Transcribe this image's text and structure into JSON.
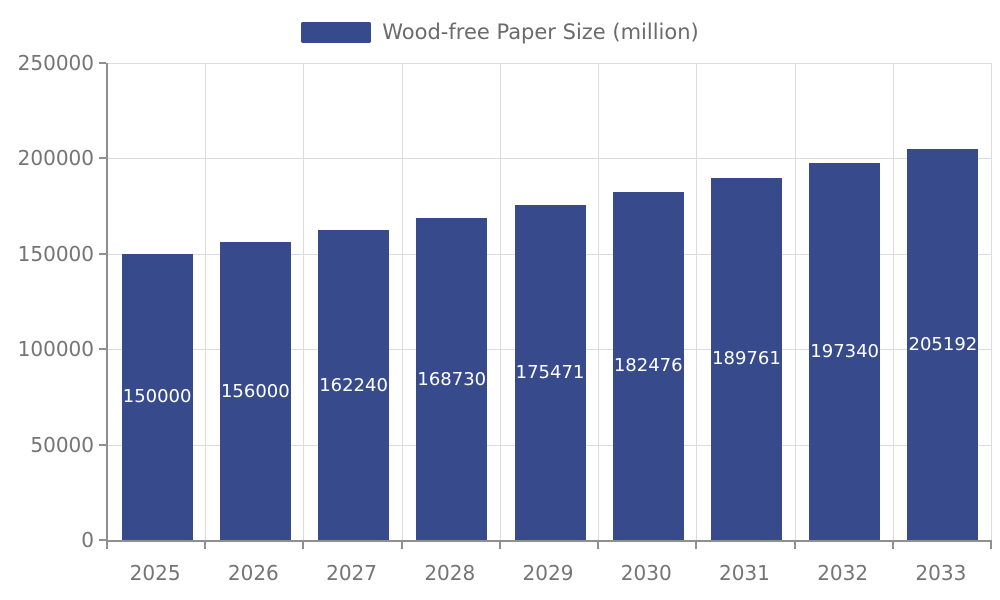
{
  "legend": {
    "label": "Wood-free Paper Size (million)",
    "swatch_color": "#374a8c"
  },
  "chart_data": {
    "type": "bar",
    "title": "Wood-free Paper Size (million)",
    "categories": [
      "2025",
      "2026",
      "2027",
      "2028",
      "2029",
      "2030",
      "2031",
      "2032",
      "2033"
    ],
    "values": [
      150000,
      156000,
      162240,
      168730,
      175471,
      182476,
      189761,
      197340,
      205192
    ],
    "value_labels": [
      "150000",
      "156000",
      "162240",
      "168730",
      "175471",
      "182476",
      "189761",
      "197340",
      "205192"
    ],
    "xlabel": "",
    "ylabel": "",
    "ylim": [
      0,
      250000
    ],
    "yticks": [
      0,
      50000,
      100000,
      150000,
      200000,
      250000
    ],
    "ytick_labels": [
      "0",
      "50000",
      "100000",
      "150000",
      "200000",
      "250000"
    ],
    "grid": true,
    "legend_position": "top-center",
    "bar_color": "#374a8c",
    "bar_value_label_color": "#ffffff",
    "axis_color": "#8f8f8f",
    "grid_color": "#dcdcdc",
    "tick_label_color": "#757575"
  }
}
